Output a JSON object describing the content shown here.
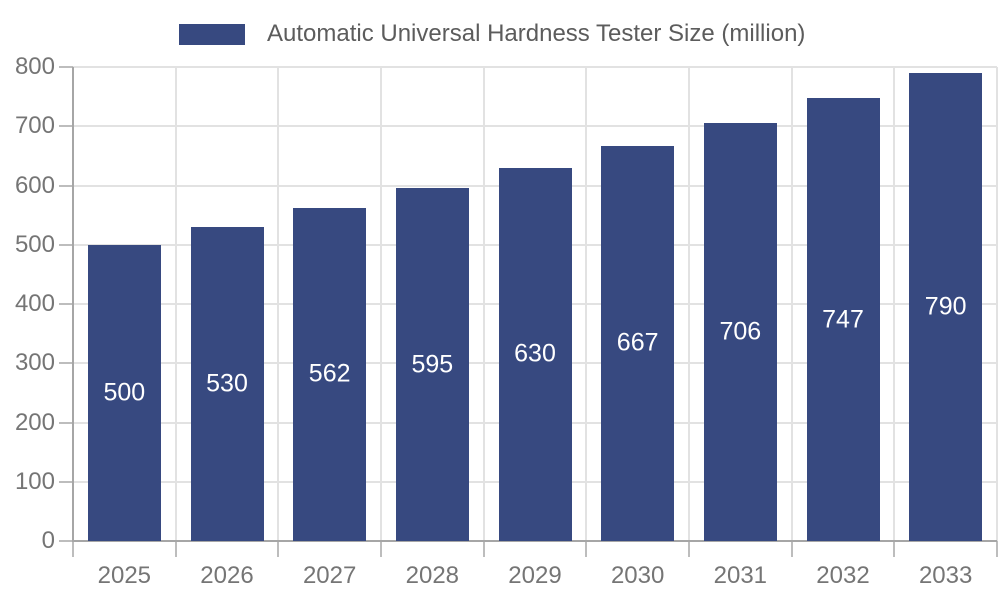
{
  "chart_data": {
    "type": "bar",
    "title": "Automatic Universal Hardness Tester Size (million)",
    "categories": [
      "2025",
      "2026",
      "2027",
      "2028",
      "2029",
      "2030",
      "2031",
      "2032",
      "2033"
    ],
    "values": [
      500,
      530,
      562,
      595,
      630,
      667,
      706,
      747,
      790
    ],
    "xlabel": "",
    "ylabel": "",
    "ylim": [
      0,
      800
    ],
    "ytick_values": [
      0,
      100,
      200,
      300,
      400,
      500,
      600,
      700,
      800
    ],
    "grid": true,
    "legend_position": "top",
    "colors": {
      "bar": "#374980",
      "bar_label": "#ffffff",
      "axis_tick_label": "#757575",
      "legend_text": "#5c5c5c",
      "gridline": "#e2e2e2",
      "axis_line": "#a6a6a6",
      "tick_mark": "#bdbdbd",
      "background": "#ffffff"
    }
  }
}
